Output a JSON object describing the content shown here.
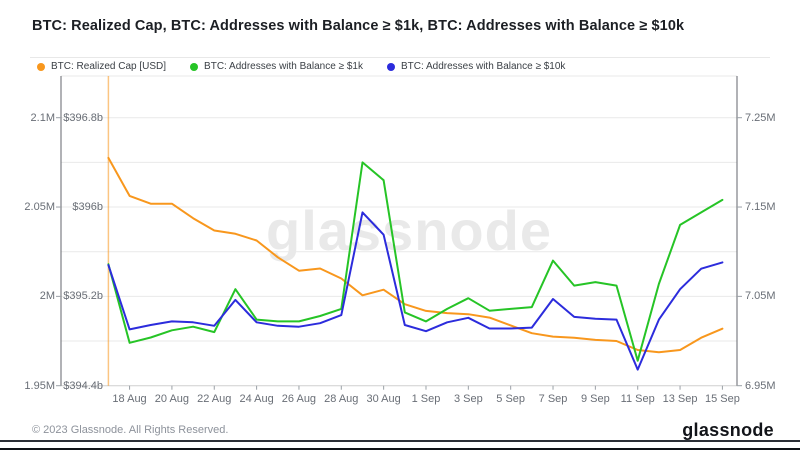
{
  "title": "BTC: Realized Cap, BTC: Addresses with Balance ≥ $1k, BTC: Addresses with Balance ≥ $10k",
  "legend": {
    "items": [
      {
        "label": "BTC: Realized Cap [USD]",
        "color": "#f8971d"
      },
      {
        "label": "BTC: Addresses with Balance ≥ $1k",
        "color": "#26c426"
      },
      {
        "label": "BTC: Addresses with Balance ≥ $10k",
        "color": "#2c2cdc"
      }
    ]
  },
  "watermark": "glassnode",
  "footer": {
    "copyright": "© 2023 Glassnode. All Rights Reserved.",
    "logo_text": "glassnode"
  },
  "colors": {
    "grid": "#e9e9e9",
    "axis_dark": "#63666c",
    "axis_bottom": "#cfcfcf",
    "tick": "#9aa0a6"
  },
  "chart_data": {
    "type": "line",
    "title": "BTC: Realized Cap, BTC: Addresses with Balance ≥ $1k, BTC: Addresses with Balance ≥ $10k",
    "x": [
      "17 Aug",
      "18 Aug",
      "19 Aug",
      "20 Aug",
      "21 Aug",
      "22 Aug",
      "23 Aug",
      "24 Aug",
      "25 Aug",
      "26 Aug",
      "27 Aug",
      "28 Aug",
      "29 Aug",
      "30 Aug",
      "31 Aug",
      "1 Sep",
      "2 Sep",
      "3 Sep",
      "4 Sep",
      "5 Sep",
      "6 Sep",
      "7 Sep",
      "8 Sep",
      "9 Sep",
      "10 Sep",
      "11 Sep",
      "12 Sep",
      "13 Sep",
      "14 Sep",
      "15 Sep"
    ],
    "x_tick_labels": [
      "18 Aug",
      "20 Aug",
      "22 Aug",
      "24 Aug",
      "26 Aug",
      "28 Aug",
      "30 Aug",
      "1 Sep",
      "3 Sep",
      "5 Sep",
      "7 Sep",
      "9 Sep",
      "11 Sep",
      "13 Sep",
      "15 Sep"
    ],
    "grid": true,
    "legend_position": "top-left",
    "axes": {
      "left": {
        "unit": "M addresses ≥ $1k",
        "max": 2.1,
        "min": 1.95,
        "ticks": [
          "2.1M",
          "2.05M",
          "2M",
          "1.95M"
        ]
      },
      "realized": {
        "unit": "USD billions",
        "max": 396.8,
        "min": 394.4,
        "ticks": [
          "$396.8b",
          "$396b",
          "$395.2b",
          "$394.4b"
        ]
      },
      "right": {
        "unit": "M addresses ≥ $10k",
        "max": 7.25,
        "min": 6.95,
        "ticks": [
          "7.25M",
          "7.15M",
          "7.05M",
          "6.95M"
        ]
      }
    },
    "series": [
      {
        "name": "BTC: Realized Cap [USD]",
        "axis": "realized",
        "color": "#f8971d",
        "values": [
          396.44,
          396.1,
          396.03,
          396.03,
          395.9,
          395.79,
          395.76,
          395.7,
          395.55,
          395.43,
          395.45,
          395.36,
          395.21,
          395.26,
          395.13,
          395.07,
          395.05,
          395.04,
          395.01,
          394.94,
          394.87,
          394.84,
          394.83,
          394.81,
          394.8,
          394.72,
          394.7,
          394.72,
          394.83,
          394.91
        ]
      },
      {
        "name": "BTC: Addresses with Balance ≥ $1k",
        "axis": "left",
        "color": "#26c426",
        "values": [
          2.018,
          1.974,
          1.977,
          1.981,
          1.983,
          1.98,
          2.004,
          1.987,
          1.986,
          1.986,
          1.989,
          1.993,
          2.075,
          2.065,
          1.991,
          1.986,
          1.993,
          1.999,
          1.992,
          1.993,
          1.994,
          2.02,
          2.006,
          2.008,
          2.006,
          1.964,
          2.007,
          2.04,
          2.047,
          2.054
        ]
      },
      {
        "name": "BTC: Addresses with Balance ≥ $10k",
        "axis": "right",
        "color": "#2c2cdc",
        "values": [
          7.085,
          7.013,
          7.018,
          7.022,
          7.021,
          7.017,
          7.046,
          7.021,
          7.017,
          7.016,
          7.02,
          7.029,
          7.144,
          7.119,
          7.018,
          7.011,
          7.021,
          7.026,
          7.014,
          7.014,
          7.015,
          7.047,
          7.027,
          7.025,
          7.024,
          6.968,
          7.024,
          7.058,
          7.081,
          7.088
        ]
      }
    ]
  }
}
